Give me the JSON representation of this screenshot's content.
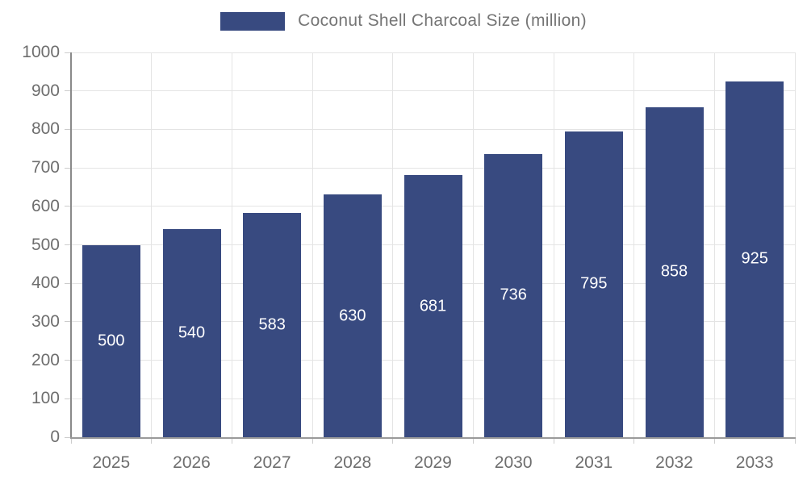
{
  "legend": {
    "label": "Coconut Shell Charcoal Size (million)",
    "swatch_color": "#384a80"
  },
  "chart_data": {
    "type": "bar",
    "title": "Coconut Shell Charcoal Size (million)",
    "categories": [
      "2025",
      "2026",
      "2027",
      "2028",
      "2029",
      "2030",
      "2031",
      "2032",
      "2033"
    ],
    "values": [
      500,
      540,
      583,
      630,
      681,
      736,
      795,
      858,
      925
    ],
    "xlabel": "",
    "ylabel": "",
    "ylim": [
      0,
      1000
    ],
    "ytick_step": 100,
    "ytick_labels": [
      "0",
      "100",
      "200",
      "300",
      "400",
      "500",
      "600",
      "700",
      "800",
      "900",
      "1000"
    ],
    "grid": true,
    "legend_position": "top",
    "bar_color": "#384a80",
    "bar_label_color": "#ffffff",
    "axis_text_color": "#6e6e6e",
    "grid_color": "#e4e4e4"
  }
}
